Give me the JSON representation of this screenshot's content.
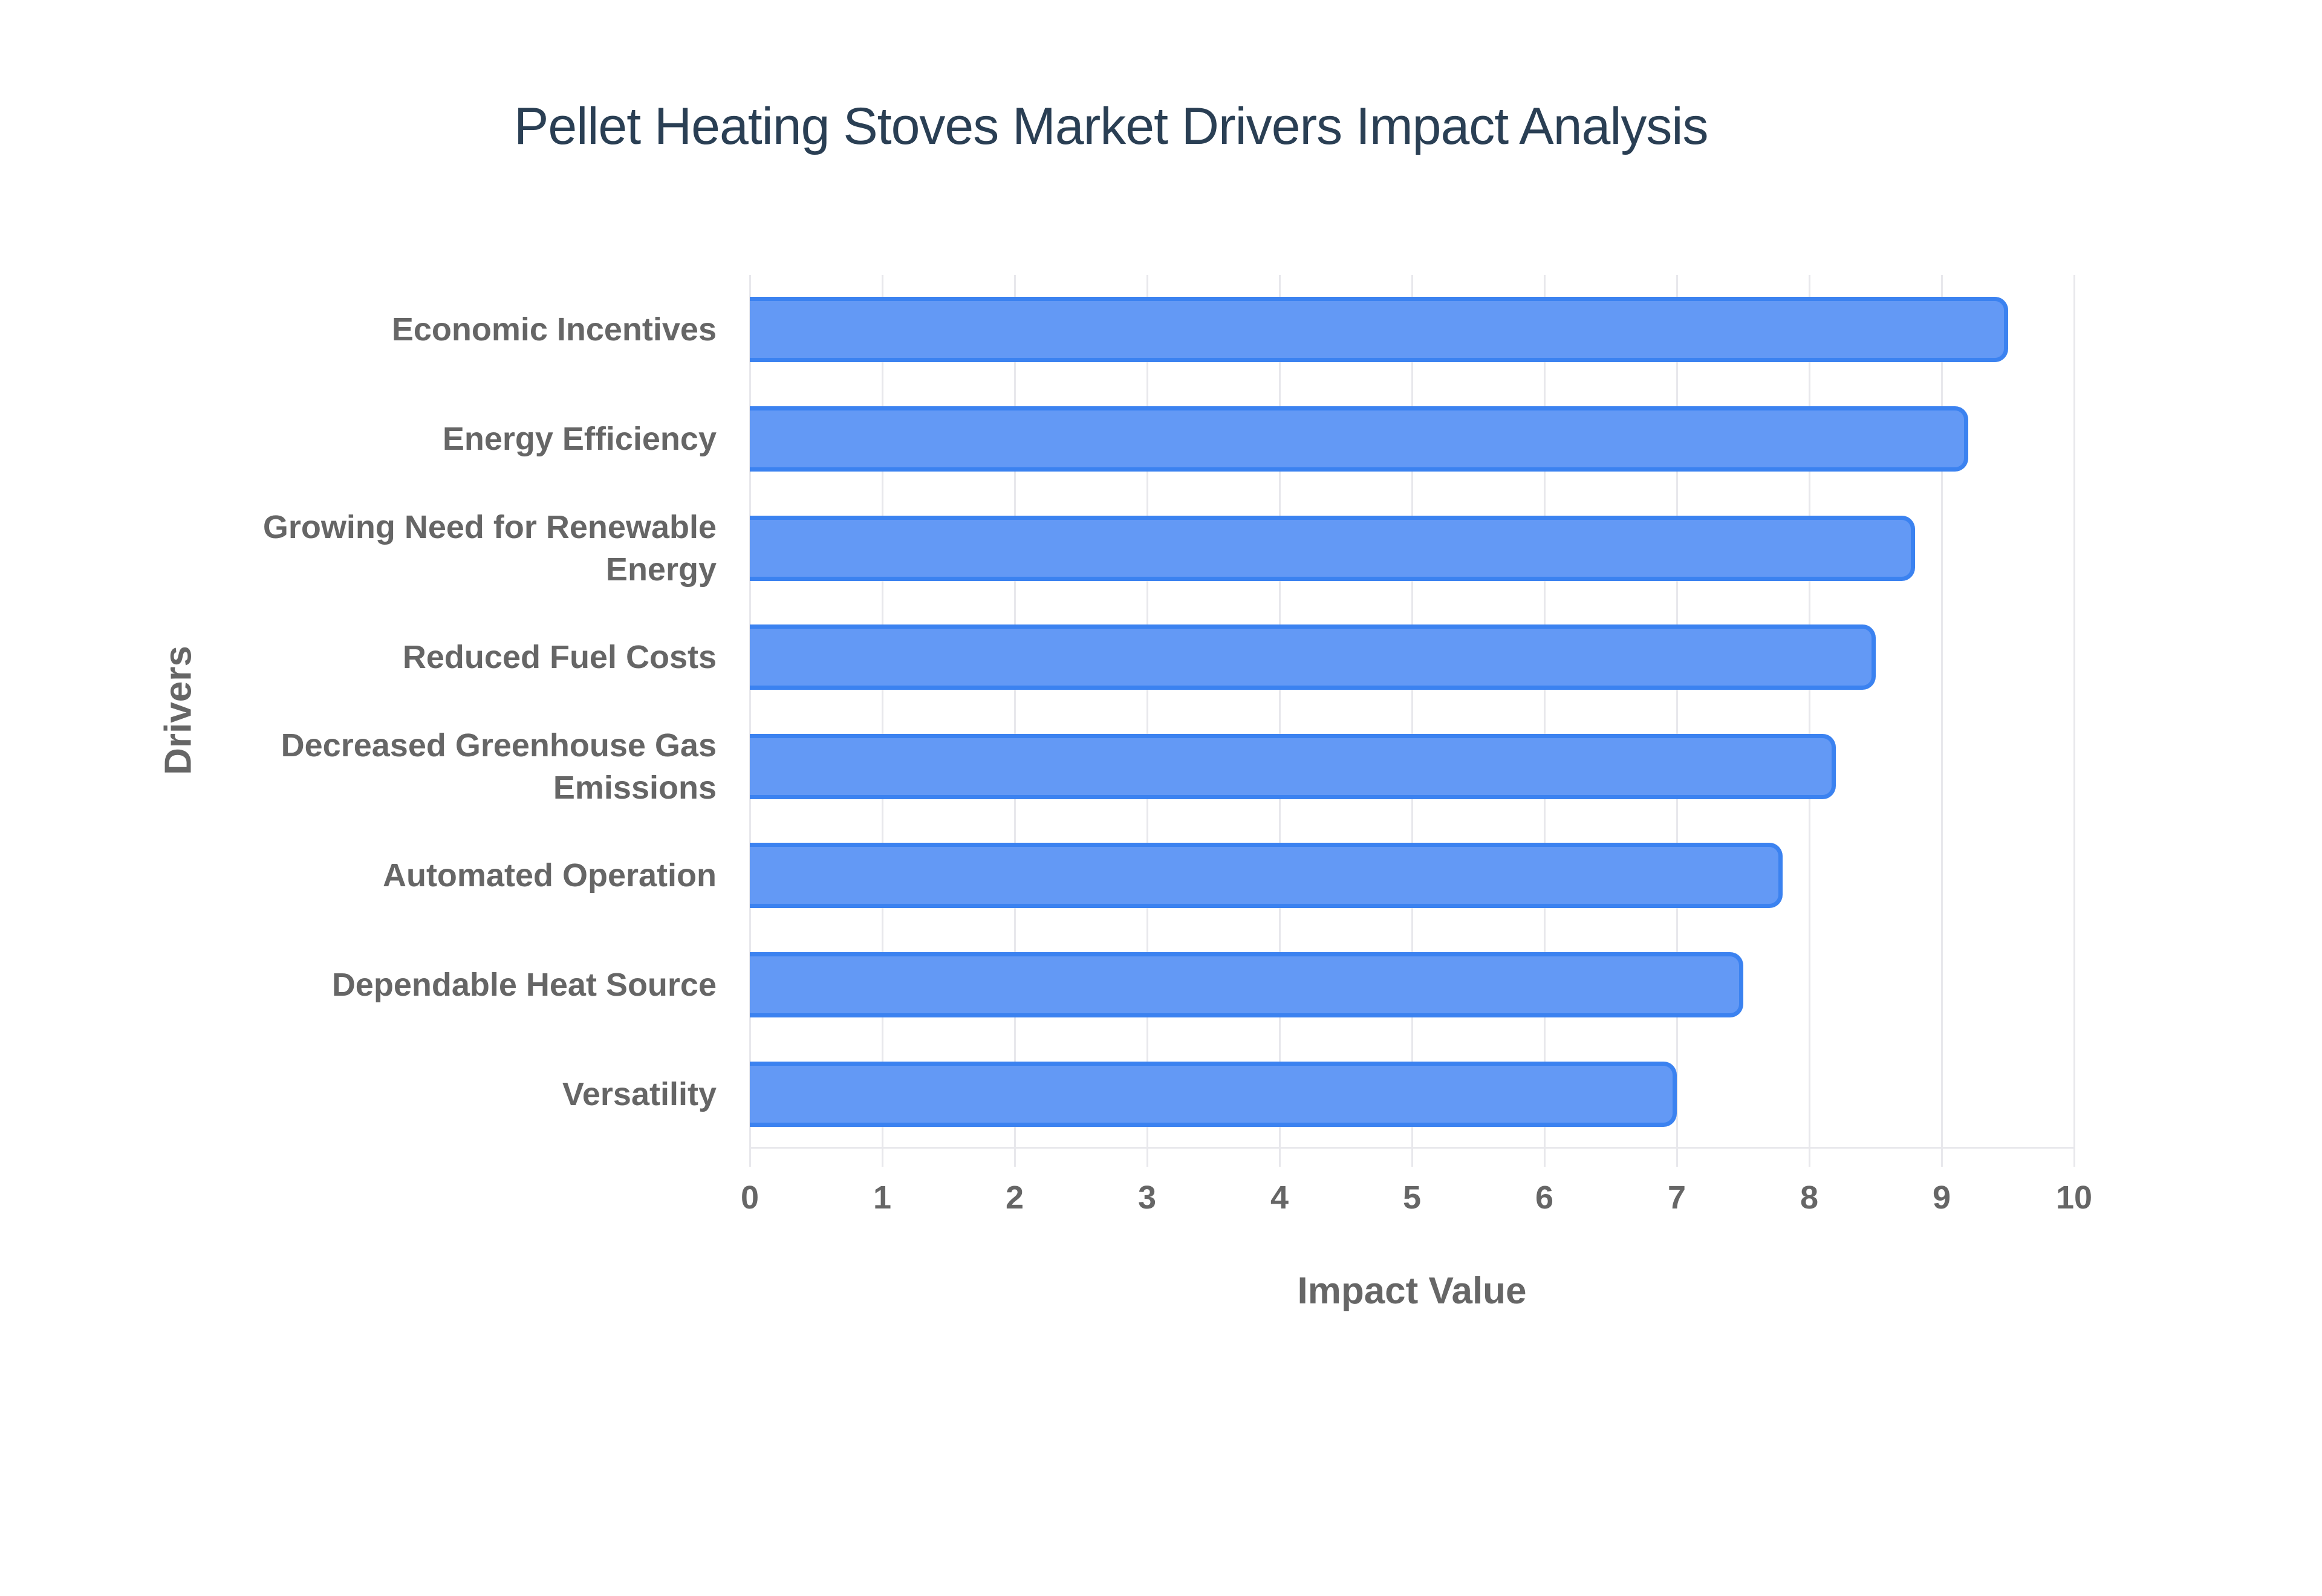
{
  "title": "Pellet Heating Stoves Market Drivers Impact Analysis",
  "axes": {
    "x_title": "Impact Value",
    "y_title": "Drivers",
    "x_ticks": [
      "0",
      "1",
      "2",
      "3",
      "4",
      "5",
      "6",
      "7",
      "8",
      "9",
      "10"
    ]
  },
  "drivers": [
    {
      "label": "Economic Incentives",
      "value": 9.5
    },
    {
      "label": "Energy Efficiency",
      "value": 9.2
    },
    {
      "label": "Growing Need for Renewable Energy",
      "value": 8.8
    },
    {
      "label": "Reduced Fuel Costs",
      "value": 8.5
    },
    {
      "label": "Decreased Greenhouse Gas Emissions",
      "value": 8.2
    },
    {
      "label": "Automated Operation",
      "value": 7.8
    },
    {
      "label": "Dependable Heat Source",
      "value": 7.5
    },
    {
      "label": "Versatility",
      "value": 7.0
    }
  ],
  "colors": {
    "bar_fill": "#6399f5",
    "bar_border": "#3b82f0",
    "title": "#2a3f54",
    "axis_text": "#666666",
    "grid": "#e8e8ec"
  },
  "chart_data": {
    "type": "bar",
    "orientation": "horizontal",
    "title": "Pellet Heating Stoves Market Drivers Impact Analysis",
    "xlabel": "Impact Value",
    "ylabel": "Drivers",
    "categories": [
      "Economic Incentives",
      "Energy Efficiency",
      "Growing Need for Renewable Energy",
      "Reduced Fuel Costs",
      "Decreased Greenhouse Gas Emissions",
      "Automated Operation",
      "Dependable Heat Source",
      "Versatility"
    ],
    "values": [
      9.5,
      9.2,
      8.8,
      8.5,
      8.2,
      7.8,
      7.5,
      7.0
    ],
    "xlim": [
      0,
      10
    ],
    "x_ticks": [
      0,
      1,
      2,
      3,
      4,
      5,
      6,
      7,
      8,
      9,
      10
    ],
    "grid": true,
    "legend": null
  }
}
